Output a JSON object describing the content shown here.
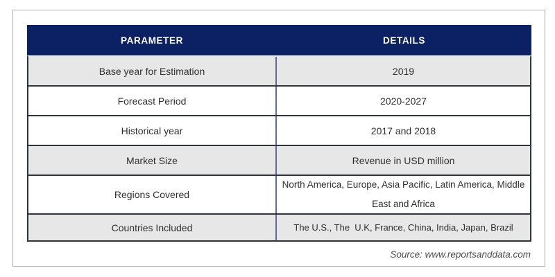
{
  "table": {
    "headers": [
      "PARAMETER",
      "DETAILS"
    ],
    "rows": [
      {
        "parameter": "Base year for Estimation",
        "details": "2019"
      },
      {
        "parameter": "Forecast Period",
        "details": "2020-2027"
      },
      {
        "parameter": "Historical year",
        "details": "2017 and 2018"
      },
      {
        "parameter": "Market Size",
        "details": "Revenue in USD million"
      },
      {
        "parameter": "Regions Covered",
        "details": "North America, Europe, Asia Pacific, Latin America, Middle East and Africa"
      },
      {
        "parameter": "Countries Included",
        "details": "The U.S., The  U.K, France, China, India, Japan, Brazil"
      }
    ]
  },
  "source": "Source: www.reportsanddata.com",
  "colors": {
    "header_bg": "#0b2163",
    "header_text": "#ffffff",
    "shaded_row": "#e7e7e7",
    "row_border": "#2e3340",
    "column_divider": "#5d6c9e",
    "frame_border": "#ababab",
    "body_text": "#2f2f31",
    "source_text": "#4c4c4c"
  }
}
